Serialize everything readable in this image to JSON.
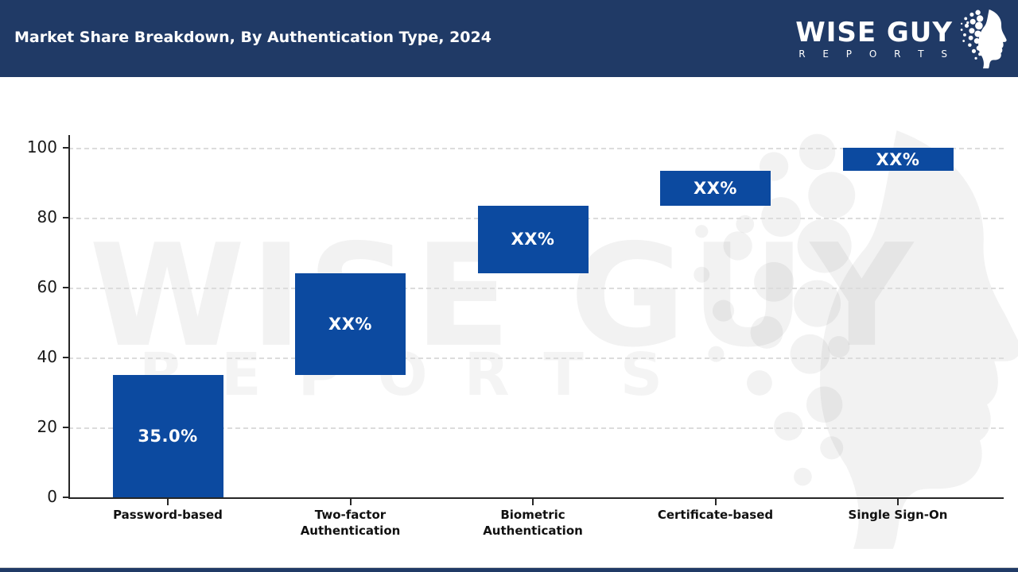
{
  "header": {
    "title": "Market Share Breakdown, By Authentication Type, 2024",
    "logo": {
      "primary": "WISE GUY",
      "secondary": "R E P O R T S"
    }
  },
  "watermark": {
    "primary": "WISE GUY",
    "secondary": "REPORTS"
  },
  "colors": {
    "header_bg": "#203a66",
    "bar": "#0c4aa0",
    "bar_label": "#ffffff",
    "axis": "#262626",
    "grid": "#dcdcdc",
    "tick_label": "#191919",
    "category_label": "#111111"
  },
  "chart_data": {
    "type": "bar",
    "subtype": "waterfall",
    "title": "Market Share Breakdown, By Authentication Type, 2024",
    "categories": [
      "Password-based",
      "Two-factor Authentication",
      "Biometric Authentication",
      "Certificate-based",
      "Single Sign-On"
    ],
    "segments": [
      {
        "category": "Password-based",
        "category_lines": [
          "Password-based"
        ],
        "start": 0,
        "end": 35.0,
        "label": "35.0%"
      },
      {
        "category": "Two-factor Authentication",
        "category_lines": [
          "Two-factor",
          "Authentication"
        ],
        "start": 35.0,
        "end": 64.1,
        "label": "XX%"
      },
      {
        "category": "Biometric Authentication",
        "category_lines": [
          "Biometric",
          "Authentication"
        ],
        "start": 64.1,
        "end": 83.5,
        "label": "XX%"
      },
      {
        "category": "Certificate-based",
        "category_lines": [
          "Certificate-based"
        ],
        "start": 83.5,
        "end": 93.4,
        "label": "XX%"
      },
      {
        "category": "Single Sign-On",
        "category_lines": [
          "Single Sign-On"
        ],
        "start": 93.4,
        "end": 100.0,
        "label": "XX%"
      }
    ],
    "ylim": [
      0,
      100
    ],
    "yticks": [
      0,
      20,
      40,
      60,
      80,
      100
    ],
    "xlabel": "",
    "ylabel": "",
    "grid": "horizontal-dashed",
    "legend": "none"
  }
}
